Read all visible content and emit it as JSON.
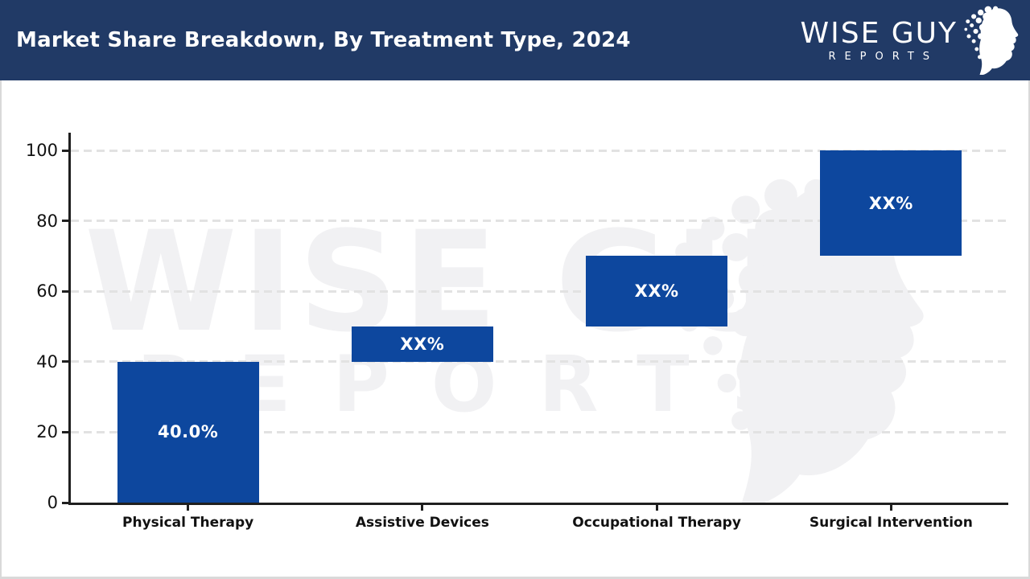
{
  "header": {
    "title": "Market Share Breakdown, By Treatment Type, 2024"
  },
  "logo": {
    "line1": "WISE GUY",
    "line2": "REPORTS"
  },
  "watermark": {
    "line1": "WISE GUY",
    "line2": "REPORTS"
  },
  "colors": {
    "header_bg": "#213a66",
    "bar": "#0d479e",
    "bar_label": "#ffffff",
    "grid": "#e2e2e2",
    "axis": "#1f1f1f",
    "watermark": "#f1f1f3"
  },
  "chart_data": {
    "type": "bar",
    "subtype": "waterfall",
    "title": "Market Share Breakdown, By Treatment Type, 2024",
    "categories": [
      "Physical Therapy",
      "Assistive Devices",
      "Occupational Therapy",
      "Surgical Intervention"
    ],
    "segments": [
      {
        "category": "Physical Therapy",
        "start": 0,
        "end": 40,
        "value": 40,
        "label": "40.0%"
      },
      {
        "category": "Assistive Devices",
        "start": 40,
        "end": 50,
        "value": 10,
        "label": "XX%"
      },
      {
        "category": "Occupational Therapy",
        "start": 50,
        "end": 70,
        "value": 20,
        "label": "XX%"
      },
      {
        "category": "Surgical Intervention",
        "start": 70,
        "end": 100,
        "value": 30,
        "label": "XX%"
      }
    ],
    "xlabel": "",
    "ylabel": "",
    "ylim": [
      0,
      100
    ],
    "yticks": [
      0,
      20,
      40,
      60,
      80,
      100
    ],
    "grid": "horizontal dashed",
    "legend": "none",
    "bar_color": "#0d479e"
  }
}
